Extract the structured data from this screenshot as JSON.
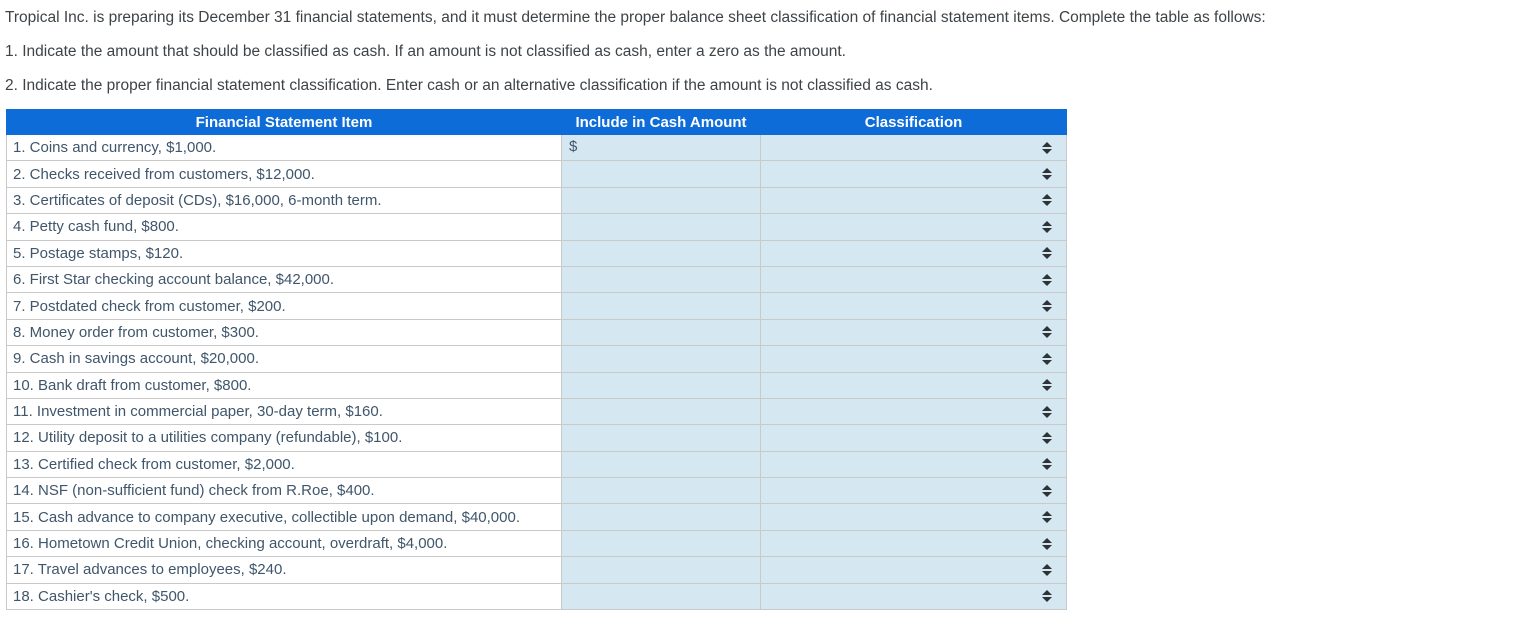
{
  "intro": {
    "line1": "Tropical Inc. is preparing its December 31 financial statements, and it must determine the proper balance sheet classification of financial statement items. Complete the table as follows:",
    "line2": "1. Indicate the amount that should be classified as cash. If an amount is not classified as cash, enter a zero as the amount.",
    "line3": "2. Indicate the proper financial statement classification. Enter cash or an alternative classification if the amount is not classified as cash."
  },
  "table": {
    "headers": [
      "Financial Statement Item",
      "Include in Cash Amount",
      "Classification"
    ],
    "rows": [
      {
        "item": "1. Coins and currency, $1,000.",
        "amount_prefix": "$",
        "amount": "",
        "classification": ""
      },
      {
        "item": "2. Checks received from customers, $12,000.",
        "amount_prefix": "",
        "amount": "",
        "classification": ""
      },
      {
        "item": "3. Certificates of deposit (CDs), $16,000, 6-month term.",
        "amount_prefix": "",
        "amount": "",
        "classification": ""
      },
      {
        "item": "4. Petty cash fund, $800.",
        "amount_prefix": "",
        "amount": "",
        "classification": ""
      },
      {
        "item": "5. Postage stamps, $120.",
        "amount_prefix": "",
        "amount": "",
        "classification": ""
      },
      {
        "item": "6. First Star checking account balance, $42,000.",
        "amount_prefix": "",
        "amount": "",
        "classification": ""
      },
      {
        "item": "7. Postdated check from customer, $200.",
        "amount_prefix": "",
        "amount": "",
        "classification": ""
      },
      {
        "item": "8. Money order from customer, $300.",
        "amount_prefix": "",
        "amount": "",
        "classification": ""
      },
      {
        "item": "9. Cash in savings account, $20,000.",
        "amount_prefix": "",
        "amount": "",
        "classification": ""
      },
      {
        "item": "10. Bank draft from customer, $800.",
        "amount_prefix": "",
        "amount": "",
        "classification": ""
      },
      {
        "item": "11. Investment in commercial paper, 30-day term, $160.",
        "amount_prefix": "",
        "amount": "",
        "classification": ""
      },
      {
        "item": "12. Utility deposit to a utilities company (refundable), $100.",
        "amount_prefix": "",
        "amount": "",
        "classification": ""
      },
      {
        "item": "13. Certified check from customer, $2,000.",
        "amount_prefix": "",
        "amount": "",
        "classification": ""
      },
      {
        "item": "14. NSF (non-sufficient fund) check from R.Roe, $400.",
        "amount_prefix": "",
        "amount": "",
        "classification": ""
      },
      {
        "item": "15. Cash advance to company executive, collectible upon demand, $40,000.",
        "amount_prefix": "",
        "amount": "",
        "classification": ""
      },
      {
        "item": "16. Hometown Credit Union, checking account, overdraft, $4,000.",
        "amount_prefix": "",
        "amount": "",
        "classification": ""
      },
      {
        "item": "17. Travel advances to employees, $240.",
        "amount_prefix": "",
        "amount": "",
        "classification": ""
      },
      {
        "item": "18. Cashier's check, $500.",
        "amount_prefix": "",
        "amount": "",
        "classification": ""
      }
    ]
  },
  "icons": {
    "classification_spinner": "up-down-arrows-icon"
  },
  "colors": {
    "header_bg": "#0e6cd8",
    "header_text": "#ffffff",
    "input_cell_bg": "#d5e8f2",
    "cell_border": "#c9c9c9",
    "item_text": "#3f566b",
    "intro_text": "#3e4347",
    "spinner": "#2e3338"
  }
}
